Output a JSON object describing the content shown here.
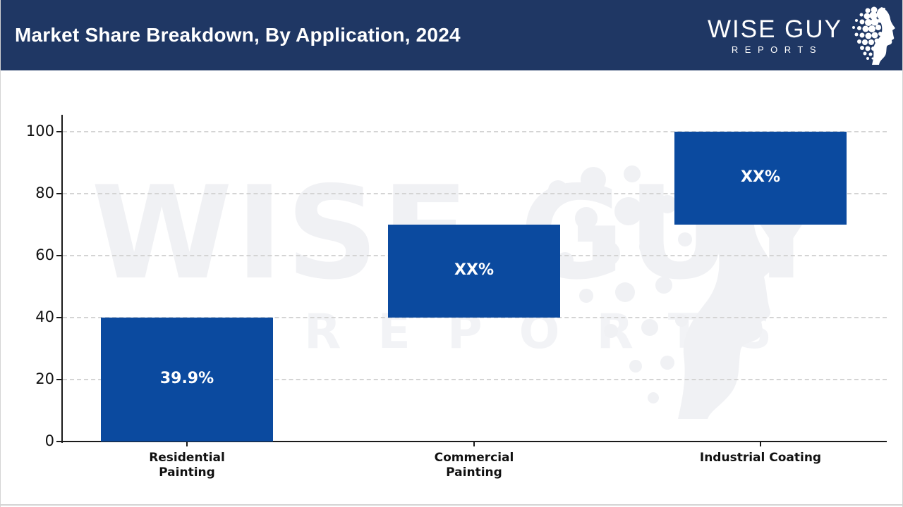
{
  "header": {
    "title": "Market Share Breakdown, By Application, 2024",
    "bg_color": "#1f3764",
    "logo": {
      "line1": "WISE GUY",
      "line2": "REPORTS"
    }
  },
  "watermark": {
    "line1": "WISE GUY",
    "line2": "REPORTS"
  },
  "chart_data": {
    "type": "bar",
    "variant": "stacked-waterfall",
    "title": "Market Share Breakdown, By Application, 2024",
    "categories": [
      {
        "lines": [
          "Residential",
          "Painting"
        ]
      },
      {
        "lines": [
          "Commercial",
          "Painting"
        ]
      },
      {
        "lines": [
          "Industrial Coating"
        ]
      }
    ],
    "segments": [
      {
        "category": "Residential Painting",
        "start": 0,
        "end": 39.9,
        "label": "39.9%"
      },
      {
        "category": "Commercial Painting",
        "start": 39.9,
        "end": 70,
        "label": "XX%"
      },
      {
        "category": "Industrial Coating",
        "start": 70,
        "end": 100,
        "label": "XX%"
      }
    ],
    "xlabel": "",
    "ylabel": "",
    "ylim": [
      0,
      100
    ],
    "yticks": [
      0,
      20,
      40,
      60,
      80,
      100
    ],
    "grid": "horizontal-dashed",
    "legend": "none",
    "bar_color": "#0b4a9f",
    "bar_label_color": "#ffffff",
    "axis_color": "#1a1a1a",
    "gridline_color": "#d4d4d4"
  }
}
